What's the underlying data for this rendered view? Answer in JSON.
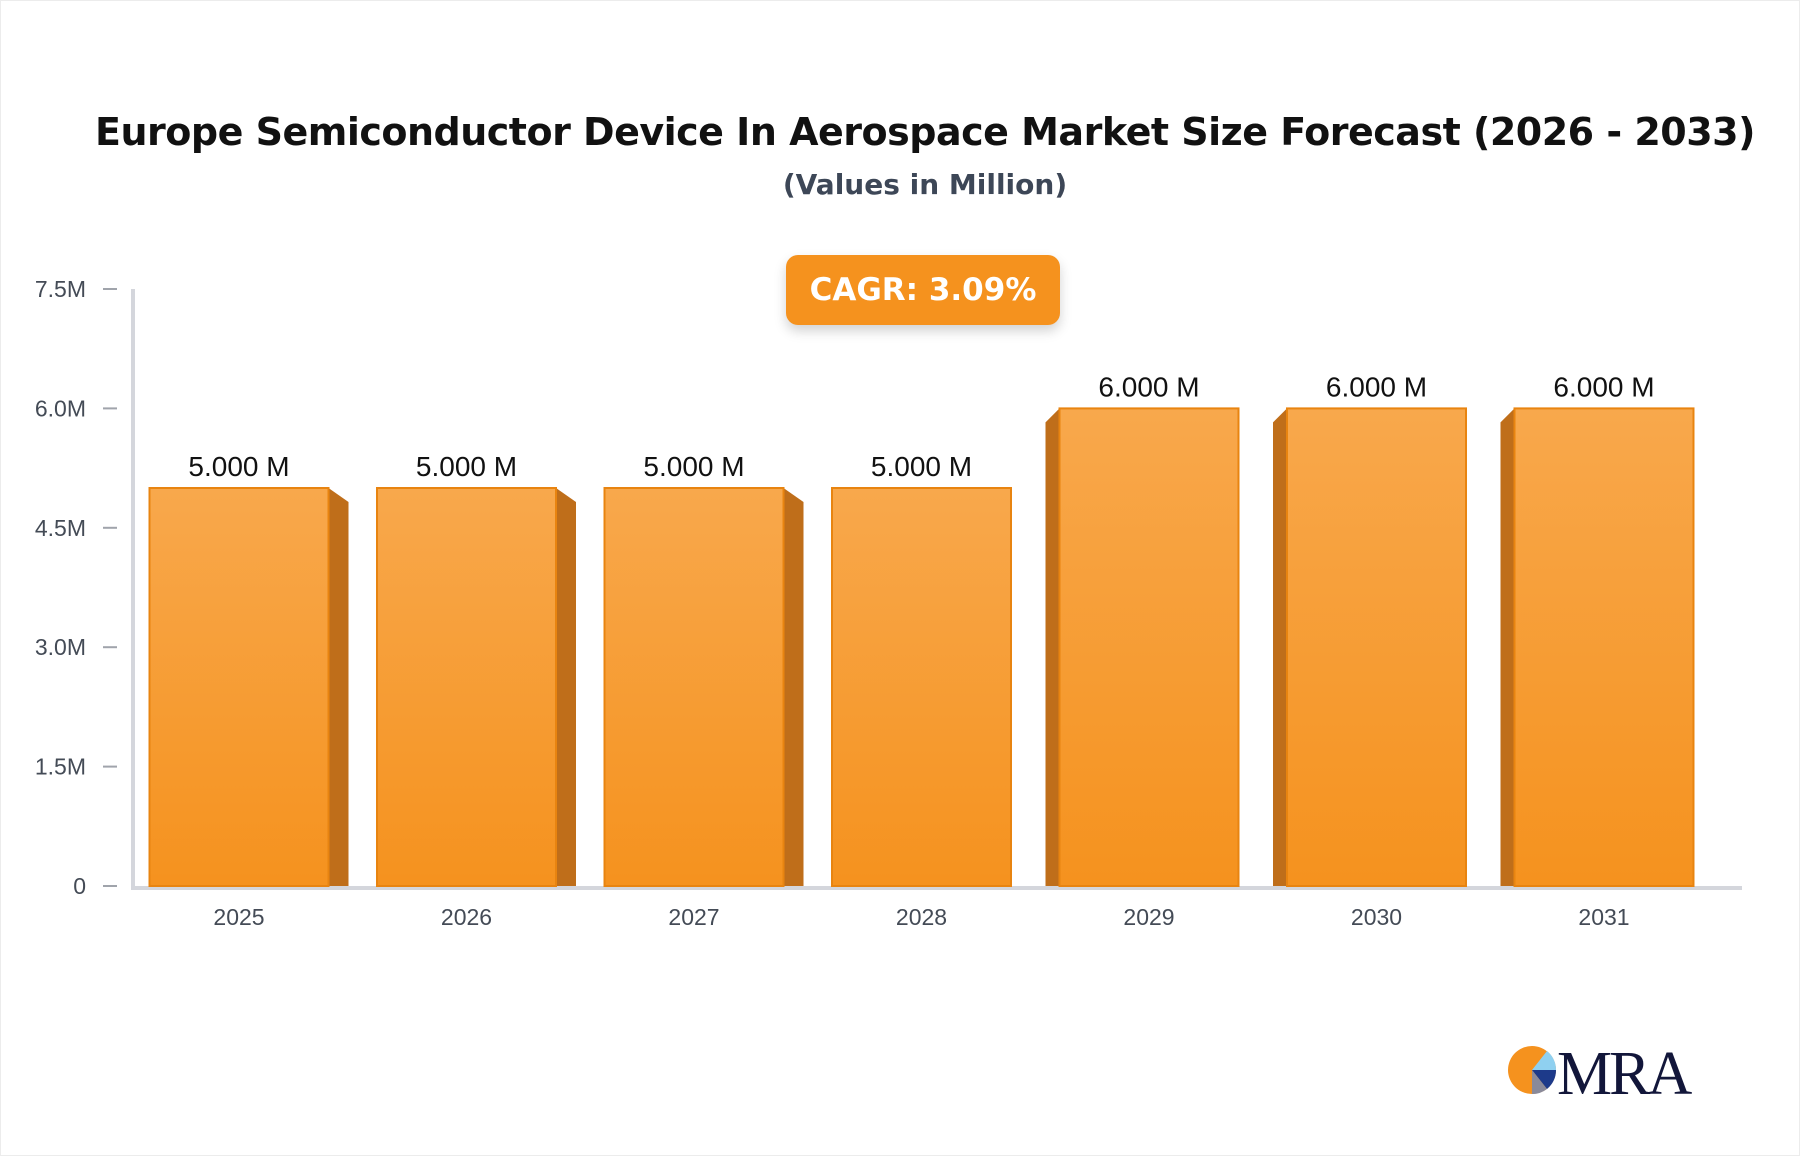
{
  "chart_data": {
    "type": "bar",
    "title": "Europe Semiconductor Device In Aerospace Market Size Forecast (2026 - 2033)",
    "subtitle": "(Values in Million)",
    "annotation": "CAGR: 3.09%",
    "categories": [
      "2025",
      "2026",
      "2027",
      "2028",
      "2029",
      "2030",
      "2031"
    ],
    "values": [
      5.0,
      5.0,
      5.0,
      5.0,
      6.0,
      6.0,
      6.0
    ],
    "data_labels": [
      "5.000 M",
      "5.000 M",
      "5.000 M",
      "5.000 M",
      "6.000 M",
      "6.000 M",
      "6.000 M"
    ],
    "ylim": [
      0,
      7.5
    ],
    "yticks": [
      0,
      1.5,
      3.0,
      4.5,
      6.0,
      7.5
    ],
    "ytick_labels": [
      "0",
      "1.5M",
      "3.0M",
      "4.5M",
      "6.0M",
      "7.5M"
    ],
    "xlabel": "",
    "ylabel": "",
    "grid": false,
    "legend": "none",
    "colors": {
      "bar": "#f5921e",
      "bar_top": "#f8a84c",
      "bar_side": "#bf6e1a",
      "axis": "#d4d6dc",
      "text": "#444b56"
    }
  },
  "logo": {
    "text": "MRA"
  }
}
